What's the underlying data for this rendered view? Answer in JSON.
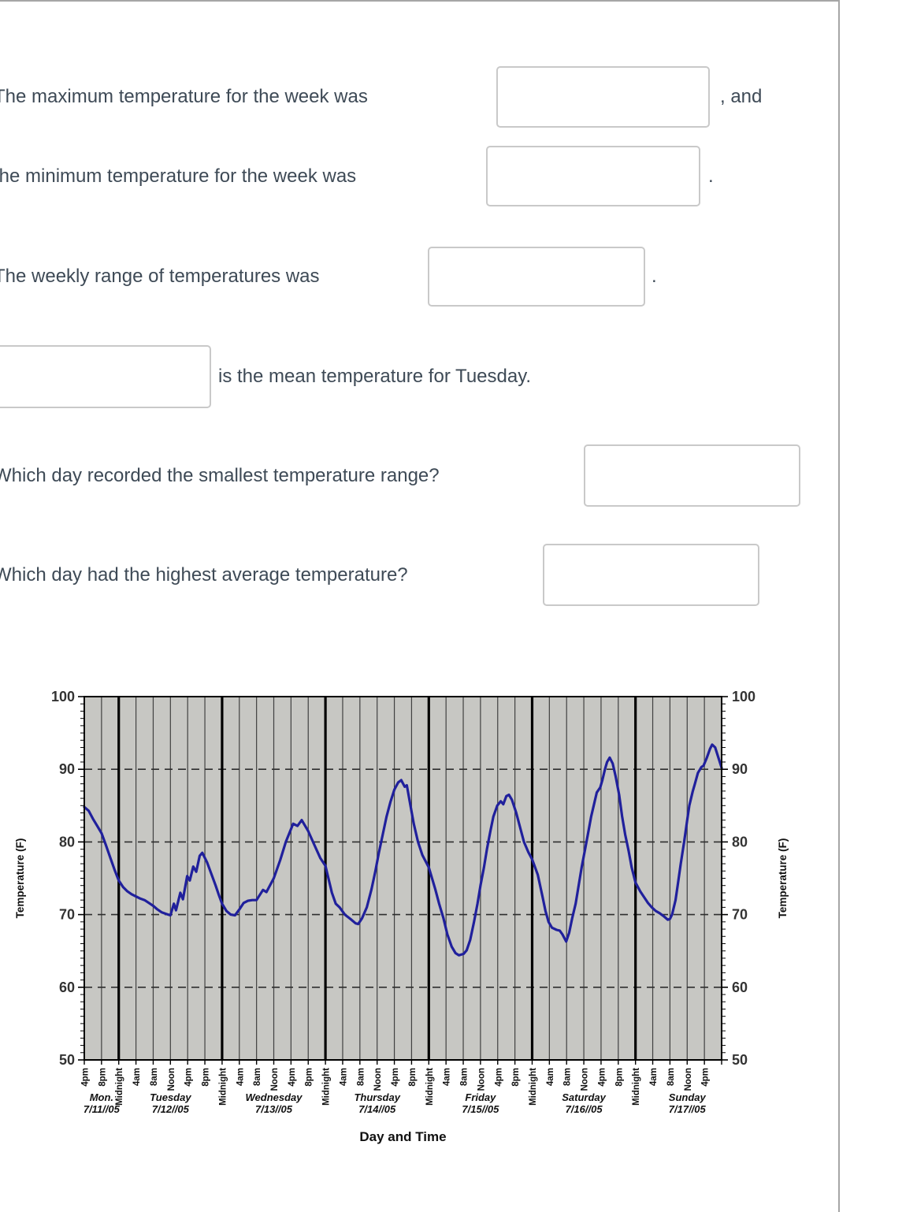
{
  "page": {
    "border_color": "#a6a6a6",
    "questions": [
      {
        "prefix": "The maximum temperature for the week was",
        "suffix": ", and",
        "value": ""
      },
      {
        "prefix": "the minimum temperature for the week was",
        "suffix": ".",
        "value": ""
      },
      {
        "prefix": "The weekly range of temperatures was",
        "suffix": ".",
        "value": ""
      },
      {
        "prefix": "",
        "suffix": "is the mean temperature for Tuesday.",
        "value": ""
      },
      {
        "prefix": "Which day recorded the smallest temperature range?",
        "suffix": "",
        "value": ""
      },
      {
        "prefix": "Which day had the highest average temperature?",
        "suffix": "",
        "value": ""
      }
    ]
  },
  "chart_data": {
    "type": "line",
    "title": "",
    "xlabel": "Day and Time",
    "ylabel_left": "Temperature (F)",
    "ylabel_right": "Temperature (F)",
    "ylim": [
      50,
      100
    ],
    "y_major_ticks": [
      50,
      60,
      70,
      80,
      90,
      100
    ],
    "dashed_gridlines": [
      60,
      70,
      80,
      90
    ],
    "x_start_hour": 16,
    "x_end_hour": 164,
    "x_tick_interval_hours": 4,
    "midnight_hours": [
      24,
      48,
      72,
      96,
      120,
      144
    ],
    "x_tick_labels": [
      {
        "t": 16,
        "label": "4pm"
      },
      {
        "t": 20,
        "label": "8pm"
      },
      {
        "t": 24,
        "label": "Midnight"
      },
      {
        "t": 28,
        "label": "4am"
      },
      {
        "t": 32,
        "label": "8am"
      },
      {
        "t": 36,
        "label": "Noon"
      },
      {
        "t": 40,
        "label": "4pm"
      },
      {
        "t": 44,
        "label": "8pm"
      },
      {
        "t": 48,
        "label": "Midnight"
      },
      {
        "t": 52,
        "label": "4am"
      },
      {
        "t": 56,
        "label": "8am"
      },
      {
        "t": 60,
        "label": "Noon"
      },
      {
        "t": 64,
        "label": "4pm"
      },
      {
        "t": 68,
        "label": "8pm"
      },
      {
        "t": 72,
        "label": "Midnight"
      },
      {
        "t": 76,
        "label": "4am"
      },
      {
        "t": 80,
        "label": "8am"
      },
      {
        "t": 84,
        "label": "Noon"
      },
      {
        "t": 88,
        "label": "4pm"
      },
      {
        "t": 92,
        "label": "8pm"
      },
      {
        "t": 96,
        "label": "Midnight"
      },
      {
        "t": 100,
        "label": "4am"
      },
      {
        "t": 104,
        "label": "8am"
      },
      {
        "t": 108,
        "label": "Noon"
      },
      {
        "t": 112,
        "label": "4pm"
      },
      {
        "t": 116,
        "label": "8pm"
      },
      {
        "t": 120,
        "label": "Midnight"
      },
      {
        "t": 124,
        "label": "4am"
      },
      {
        "t": 128,
        "label": "8am"
      },
      {
        "t": 132,
        "label": "Noon"
      },
      {
        "t": 136,
        "label": "4pm"
      },
      {
        "t": 140,
        "label": "8pm"
      },
      {
        "t": 144,
        "label": "Midnight"
      },
      {
        "t": 148,
        "label": "4am"
      },
      {
        "t": 152,
        "label": "8am"
      },
      {
        "t": 156,
        "label": "Noon"
      },
      {
        "t": 160,
        "label": "4pm"
      }
    ],
    "days": [
      {
        "name": "Mon.",
        "date": "7/11//05",
        "t_center": 20
      },
      {
        "name": "Tuesday",
        "date": "7/12//05",
        "t_center": 36
      },
      {
        "name": "Wednesday",
        "date": "7/13//05",
        "t_center": 60
      },
      {
        "name": "Thursday",
        "date": "7/14//05",
        "t_center": 84
      },
      {
        "name": "Friday",
        "date": "7/15//05",
        "t_center": 108
      },
      {
        "name": "Saturday",
        "date": "7/16//05",
        "t_center": 132
      },
      {
        "name": "Sunday",
        "date": "7/17//05",
        "t_center": 156
      }
    ],
    "plot_bg": "#c7c7c3",
    "grid_color": "#414141",
    "dash_color": "#2e2e2e",
    "line_color": "#20209c",
    "series": {
      "name": "Temperature",
      "points": [
        [
          16,
          84.8
        ],
        [
          17,
          84.3
        ],
        [
          18,
          83.2
        ],
        [
          19,
          82.2
        ],
        [
          20,
          81.2
        ],
        [
          21,
          79.6
        ],
        [
          22,
          77.9
        ],
        [
          23,
          76.2
        ],
        [
          24,
          74.7
        ],
        [
          25,
          73.8
        ],
        [
          26,
          73.2
        ],
        [
          27,
          72.8
        ],
        [
          28,
          72.5
        ],
        [
          29,
          72.2
        ],
        [
          30,
          72.0
        ],
        [
          31,
          71.6
        ],
        [
          32,
          71.2
        ],
        [
          33,
          70.7
        ],
        [
          34,
          70.3
        ],
        [
          35,
          70.1
        ],
        [
          36,
          69.9
        ],
        [
          36.8,
          71.5
        ],
        [
          37.3,
          70.6
        ],
        [
          38.3,
          73.0
        ],
        [
          38.9,
          72.1
        ],
        [
          39.9,
          75.3
        ],
        [
          40.5,
          74.7
        ],
        [
          41.3,
          76.6
        ],
        [
          42.0,
          75.9
        ],
        [
          42.8,
          78.1
        ],
        [
          43.4,
          78.5
        ],
        [
          44.5,
          77.2
        ],
        [
          45.5,
          75.6
        ],
        [
          46.5,
          74.0
        ],
        [
          47.3,
          72.6
        ],
        [
          48,
          71.5
        ],
        [
          49,
          70.5
        ],
        [
          50,
          70.0
        ],
        [
          51,
          69.9
        ],
        [
          52,
          70.7
        ],
        [
          53,
          71.6
        ],
        [
          54,
          71.9
        ],
        [
          55,
          72.0
        ],
        [
          56,
          72.0
        ],
        [
          57.5,
          73.4
        ],
        [
          58.3,
          73.1
        ],
        [
          60,
          75.0
        ],
        [
          61.5,
          77.5
        ],
        [
          62.8,
          80.0
        ],
        [
          64.5,
          82.5
        ],
        [
          65.5,
          82.2
        ],
        [
          66.5,
          83.0
        ],
        [
          68,
          81.5
        ],
        [
          69.5,
          79.5
        ],
        [
          70.8,
          77.8
        ],
        [
          72,
          76.7
        ],
        [
          73.5,
          73.0
        ],
        [
          74.4,
          71.5
        ],
        [
          75.3,
          71.0
        ],
        [
          76.5,
          70.0
        ],
        [
          77.8,
          69.4
        ],
        [
          79,
          68.8
        ],
        [
          79.6,
          68.7
        ],
        [
          80.5,
          69.5
        ],
        [
          81.6,
          71.0
        ],
        [
          82.7,
          73.5
        ],
        [
          83.6,
          76.0
        ],
        [
          84.4,
          78.5
        ],
        [
          85.3,
          81.0
        ],
        [
          86.2,
          83.5
        ],
        [
          87.1,
          85.5
        ],
        [
          88,
          87.2
        ],
        [
          88.9,
          88.2
        ],
        [
          89.6,
          88.5
        ],
        [
          90.4,
          87.6
        ],
        [
          90.9,
          87.8
        ],
        [
          91.6,
          85.5
        ],
        [
          92.5,
          82.5
        ],
        [
          93.5,
          80.0
        ],
        [
          94.5,
          78.2
        ],
        [
          96,
          76.5
        ],
        [
          97.5,
          73.5
        ],
        [
          98.4,
          71.5
        ],
        [
          99.4,
          69.5
        ],
        [
          100.3,
          67.3
        ],
        [
          101.3,
          65.6
        ],
        [
          102.2,
          64.7
        ],
        [
          103,
          64.4
        ],
        [
          104.1,
          64.6
        ],
        [
          104.8,
          65.1
        ],
        [
          105.6,
          66.5
        ],
        [
          106.5,
          69.0
        ],
        [
          107.3,
          71.5
        ],
        [
          108,
          74.0
        ],
        [
          108.8,
          76.5
        ],
        [
          109.5,
          79.0
        ],
        [
          110.3,
          81.5
        ],
        [
          111,
          83.5
        ],
        [
          111.9,
          85.0
        ],
        [
          112.7,
          85.6
        ],
        [
          113.3,
          85.2
        ],
        [
          114,
          86.3
        ],
        [
          114.6,
          86.5
        ],
        [
          115.3,
          85.8
        ],
        [
          116.3,
          84.0
        ],
        [
          117.2,
          82.0
        ],
        [
          118.1,
          80.0
        ],
        [
          119.1,
          78.6
        ],
        [
          120,
          77.6
        ],
        [
          121.3,
          75.5
        ],
        [
          122.4,
          72.5
        ],
        [
          123.1,
          70.5
        ],
        [
          123.8,
          69.0
        ],
        [
          124.6,
          68.2
        ],
        [
          125.7,
          67.9
        ],
        [
          126.4,
          67.8
        ],
        [
          127,
          67.3
        ],
        [
          127.9,
          66.3
        ],
        [
          128.6,
          67.5
        ],
        [
          129.3,
          69.5
        ],
        [
          130.1,
          71.5
        ],
        [
          130.8,
          74.0
        ],
        [
          131.5,
          76.5
        ],
        [
          132.3,
          79.0
        ],
        [
          133,
          81.2
        ],
        [
          133.7,
          83.5
        ],
        [
          134.5,
          85.5
        ],
        [
          135,
          86.8
        ],
        [
          135.8,
          87.5
        ],
        [
          136.3,
          88.5
        ],
        [
          136.9,
          90.0
        ],
        [
          137.4,
          91.0
        ],
        [
          138,
          91.6
        ],
        [
          138.7,
          90.8
        ],
        [
          139.4,
          89.0
        ],
        [
          140.2,
          86.5
        ],
        [
          140.9,
          83.5
        ],
        [
          141.6,
          81.0
        ],
        [
          142.4,
          78.8
        ],
        [
          143.1,
          76.5
        ],
        [
          144,
          74.4
        ],
        [
          145.1,
          73.2
        ],
        [
          146,
          72.4
        ],
        [
          146.9,
          71.6
        ],
        [
          147.8,
          71.0
        ],
        [
          148.7,
          70.5
        ],
        [
          149.6,
          70.2
        ],
        [
          150.5,
          69.8
        ],
        [
          151.5,
          69.3
        ],
        [
          152,
          69.4
        ],
        [
          152.5,
          70.0
        ],
        [
          153.3,
          72.0
        ],
        [
          153.8,
          74.0
        ],
        [
          154.5,
          77.0
        ],
        [
          155.3,
          80.0
        ],
        [
          156,
          83.0
        ],
        [
          156.5,
          85.0
        ],
        [
          157.3,
          87.0
        ],
        [
          157.8,
          88.0
        ],
        [
          158.5,
          89.5
        ],
        [
          159.3,
          90.3
        ],
        [
          159.8,
          90.5
        ],
        [
          160.5,
          91.5
        ],
        [
          161.3,
          92.8
        ],
        [
          161.8,
          93.4
        ],
        [
          162.5,
          93.0
        ],
        [
          163.3,
          91.5
        ],
        [
          164,
          90.2
        ]
      ]
    }
  }
}
